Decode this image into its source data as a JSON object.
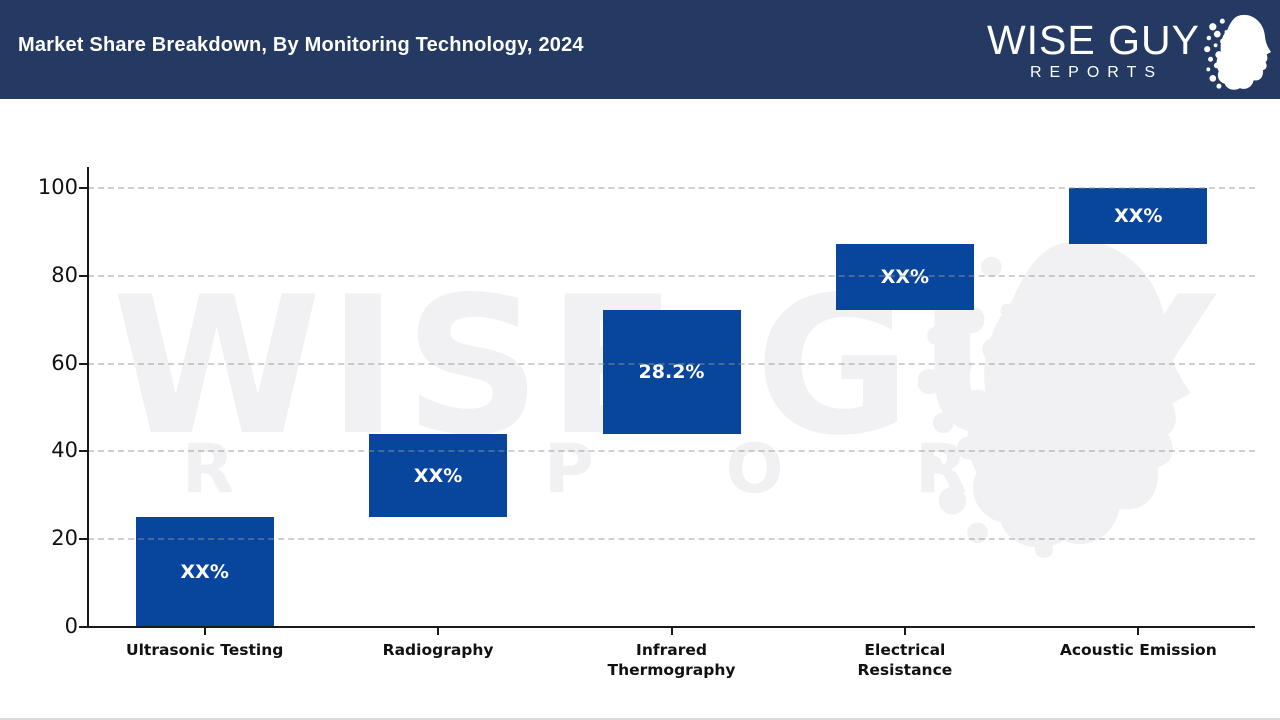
{
  "header": {
    "title": "Market Share Breakdown, By Monitoring Technology, 2024",
    "logo": {
      "line1": "WISE GUY",
      "line2": "REPORTS"
    }
  },
  "watermark": {
    "line1": "WISE GUY",
    "line2": "R E P O R T S"
  },
  "colors": {
    "header_bg": "#243a63",
    "bar_blue": "#08459c",
    "watermark_gray": "#f1f1f3",
    "grid_gray": "#d5d5d5",
    "axis_black": "#1a1a1a"
  },
  "chart_data": {
    "type": "bar",
    "variant": "waterfall",
    "title": "Market Share Breakdown, By Monitoring Technology, 2024",
    "categories": [
      [
        "Ultrasonic Testing"
      ],
      [
        "Radiography"
      ],
      [
        "Infrared",
        "Thermography"
      ],
      [
        "Electrical",
        "Resistance"
      ],
      [
        "Acoustic Emission"
      ]
    ],
    "segments": [
      {
        "start": 0,
        "end": 25,
        "label": "XX%"
      },
      {
        "start": 25,
        "end": 44,
        "label": "XX%"
      },
      {
        "start": 44,
        "end": 72.2,
        "label": "28.2%"
      },
      {
        "start": 72.2,
        "end": 87.2,
        "label": "XX%"
      },
      {
        "start": 87.2,
        "end": 100,
        "label": "XX%"
      }
    ],
    "ylim": [
      0,
      104.5
    ],
    "yticks": [
      0,
      20,
      40,
      60,
      80,
      100
    ],
    "grid": {
      "axis": "y",
      "style": "dashed"
    },
    "legend": null,
    "bar_color": "#08459c",
    "bar_label_color": "#ffffff"
  }
}
